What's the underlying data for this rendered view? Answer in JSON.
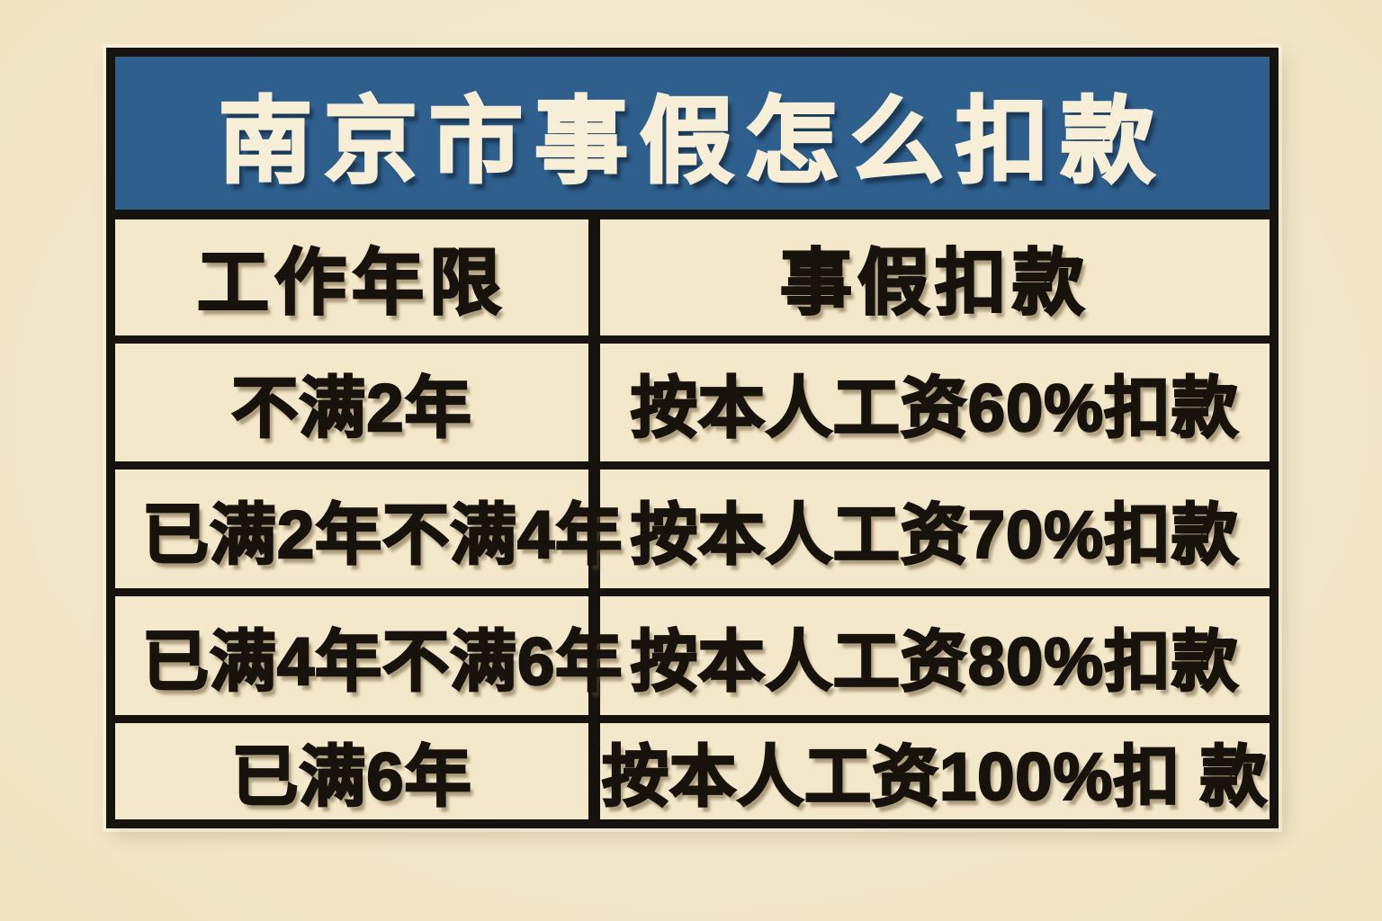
{
  "title": "南京市事假怎么扣款",
  "table": {
    "headers": [
      "工作年限",
      "事假扣款"
    ],
    "rows": [
      {
        "years": "不满2年",
        "deduction": "按本人工资60%扣款"
      },
      {
        "years": "已满2年不满4年",
        "deduction": "按本人工资70%扣款"
      },
      {
        "years": "已满4年不满6年",
        "deduction": "按本人工资80%扣款"
      },
      {
        "years": "已满6年",
        "deduction": "按本人工资100%扣 款"
      }
    ]
  },
  "colors": {
    "background_cream": "#f3e8ca",
    "banner_blue": "#2e5f8d",
    "border_black": "#16120e",
    "title_text": "#f6eed6",
    "cell_text": "#17120c"
  }
}
